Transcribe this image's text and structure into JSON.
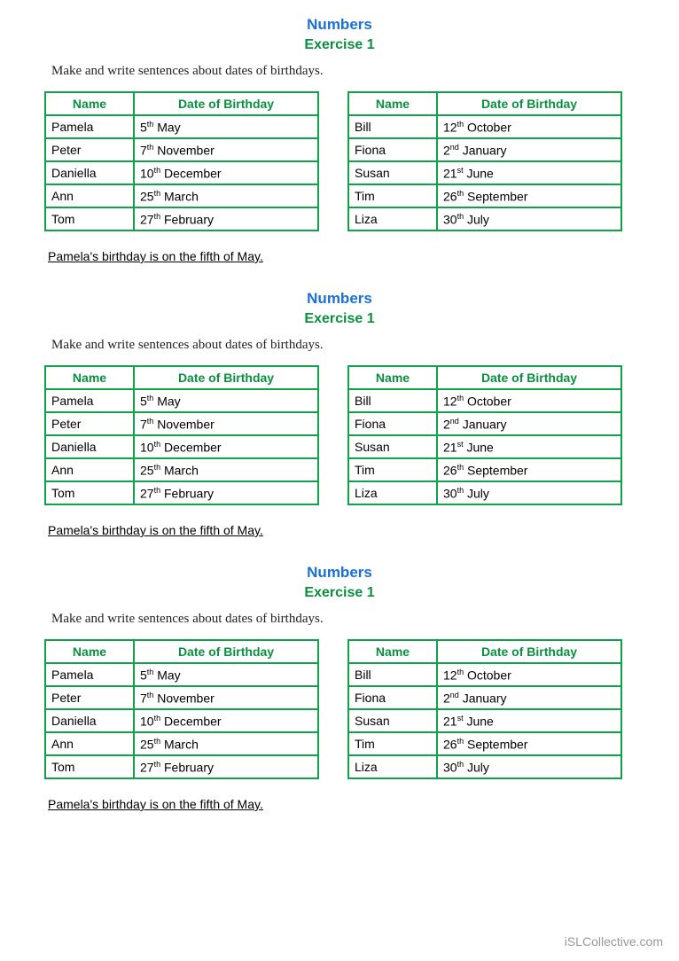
{
  "colors": {
    "title_blue": "#1a6fd8",
    "exercise_green": "#0b8f3f",
    "table_border": "#0fa24a",
    "header_text": "#0b8f3f",
    "body_text": "#000000",
    "footer_text": "#999999",
    "background": "#ffffff"
  },
  "title_main": "Numbers",
  "title_sub": "Exercise 1",
  "instruction": "Make and write sentences about dates of birthdays.",
  "table_headers": {
    "name": "Name",
    "date": "Date of Birthday"
  },
  "table_left": [
    {
      "name": "Pamela",
      "ord": "5",
      "sup": "th",
      "month": "May"
    },
    {
      "name": "Peter",
      "ord": "7",
      "sup": "th",
      "month": " November"
    },
    {
      "name": "Daniella",
      "ord": "10",
      "sup": "th",
      "month": "December"
    },
    {
      "name": "Ann",
      "ord": "25",
      "sup": "th",
      "month": "March"
    },
    {
      "name": "Tom",
      "ord": "27",
      "sup": "th",
      "month": "February"
    }
  ],
  "table_right": [
    {
      "name": "Bill",
      "ord": "12",
      "sup": "th",
      "month": "October"
    },
    {
      "name": "Fiona",
      "ord": "2",
      "sup": "nd",
      "month": "January"
    },
    {
      "name": "Susan",
      "ord": "21",
      "sup": "st",
      "month": "June"
    },
    {
      "name": "Tim",
      "ord": "26",
      "sup": "th",
      "month": "September"
    },
    {
      "name": "Liza",
      "ord": "30",
      "sup": "th",
      "month": "July"
    }
  ],
  "example": "Pamela's birthday is on the fifth of May.",
  "footer": "iSLCollective.com",
  "repeat_count": 3
}
